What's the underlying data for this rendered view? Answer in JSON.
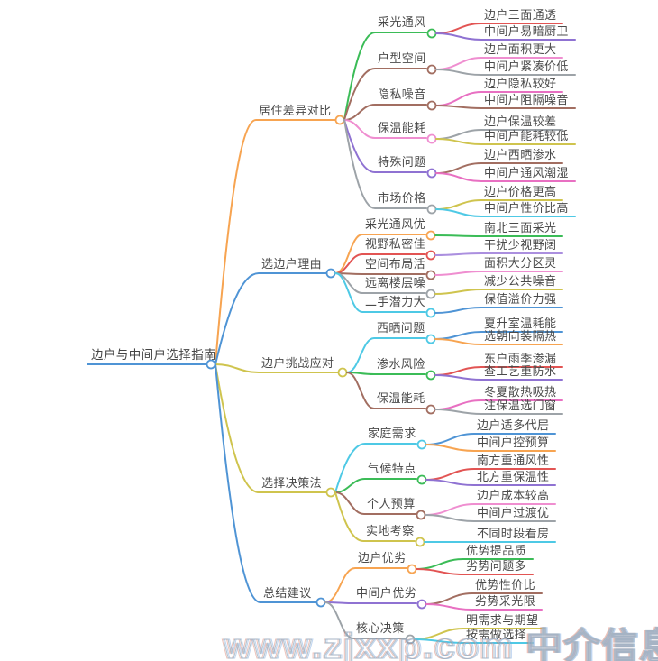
{
  "watermark": {
    "text": "www.zjxxp.com 中介信息铺网"
  },
  "palette": {
    "blue": "#4f94d5",
    "orange": "#f7a451",
    "olive": "#cfc44e",
    "cyan": "#4ec9e5",
    "green": "#3bbc57",
    "red": "#e25453",
    "brown": "#a26e61",
    "purple": "#8f72d2",
    "lavender": "#ab8fdf",
    "magenta": "#e870c2",
    "pink": "#ef8ed0",
    "gray": "#9da3a8"
  },
  "mindmap": {
    "root": {
      "label": "边户与中间户选择指南",
      "color": "blue"
    },
    "branches": [
      {
        "label": "居住差异对比",
        "color": "orange",
        "children": [
          {
            "label": "采光通风",
            "color": "green",
            "leaves": [
              {
                "label": "边户三面通透",
                "color": "red"
              },
              {
                "label": "中间户易暗厨卫",
                "color": "purple"
              }
            ]
          },
          {
            "label": "户型空间",
            "color": "brown",
            "leaves": [
              {
                "label": "边户面积更大",
                "color": "pink"
              },
              {
                "label": "中间户紧凑价低",
                "color": "gray"
              }
            ]
          },
          {
            "label": "隐私噪音",
            "color": "brown",
            "leaves": [
              {
                "label": "边户隐私较好",
                "color": "magenta"
              },
              {
                "label": "中间户阻隔噪音",
                "color": "brown"
              }
            ]
          },
          {
            "label": "保温能耗",
            "color": "pink",
            "leaves": [
              {
                "label": "边户保温较差",
                "color": "gray"
              },
              {
                "label": "中间户能耗较低",
                "color": "olive"
              }
            ]
          },
          {
            "label": "特殊问题",
            "color": "purple",
            "leaves": [
              {
                "label": "边户西晒渗水",
                "color": "brown"
              },
              {
                "label": "中间户通风潮湿",
                "color": "magenta"
              }
            ]
          },
          {
            "label": "市场价格",
            "color": "gray",
            "leaves": [
              {
                "label": "边户价格更高",
                "color": "olive"
              },
              {
                "label": "中间户性价比高",
                "color": "cyan"
              }
            ]
          }
        ]
      },
      {
        "label": "选边户理由",
        "color": "blue",
        "children": [
          {
            "label": "采光通风优",
            "color": "orange",
            "leaves": [
              {
                "label": "南北三面采光",
                "color": "green"
              }
            ]
          },
          {
            "label": "视野私密佳",
            "color": "red",
            "leaves": [
              {
                "label": "干扰少视野阔",
                "color": "lavender"
              }
            ]
          },
          {
            "label": "空间布局活",
            "color": "brown",
            "leaves": [
              {
                "label": "面积大分区灵",
                "color": "pink"
              }
            ]
          },
          {
            "label": "远离楼层噪",
            "color": "gray",
            "leaves": [
              {
                "label": "减少公共噪音",
                "color": "olive"
              }
            ]
          },
          {
            "label": "二手潜力大",
            "color": "cyan",
            "leaves": [
              {
                "label": "保值溢价力强",
                "color": "blue"
              }
            ]
          }
        ]
      },
      {
        "label": "边户挑战应对",
        "color": "olive",
        "children": [
          {
            "label": "西晒问题",
            "color": "cyan",
            "leaves": [
              {
                "label": "夏升室温耗能",
                "color": "blue"
              },
              {
                "label": "选朝向装隔热",
                "color": "orange"
              }
            ]
          },
          {
            "label": "渗水风险",
            "color": "green",
            "leaves": [
              {
                "label": "东户雨季渗漏",
                "color": "red"
              },
              {
                "label": "查工艺重防水",
                "color": "purple"
              }
            ]
          },
          {
            "label": "保温能耗",
            "color": "brown",
            "leaves": [
              {
                "label": "冬夏散热吸热",
                "color": "magenta"
              },
              {
                "label": "注保温选门窗",
                "color": "gray"
              }
            ]
          }
        ]
      },
      {
        "label": "选择决策法",
        "color": "olive",
        "children": [
          {
            "label": "家庭需求",
            "color": "cyan",
            "leaves": [
              {
                "label": "边户适多代居",
                "color": "blue"
              },
              {
                "label": "中间户控预算",
                "color": "orange"
              }
            ]
          },
          {
            "label": "气候特点",
            "color": "green",
            "leaves": [
              {
                "label": "南方重通风性",
                "color": "red"
              },
              {
                "label": "北方重保温性",
                "color": "purple"
              }
            ]
          },
          {
            "label": "个人预算",
            "color": "brown",
            "leaves": [
              {
                "label": "边户成本较高",
                "color": "pink"
              },
              {
                "label": "中间户过渡优",
                "color": "gray"
              }
            ]
          },
          {
            "label": "实地考察",
            "color": "olive",
            "leaves": [
              {
                "label": "不同时段看房",
                "color": "cyan"
              }
            ]
          }
        ]
      },
      {
        "label": "总结建议",
        "color": "blue",
        "children": [
          {
            "label": "边户优劣",
            "color": "orange",
            "leaves": [
              {
                "label": "优势提品质",
                "color": "green"
              },
              {
                "label": "劣势问题多",
                "color": "red"
              }
            ]
          },
          {
            "label": "中间户优劣",
            "color": "purple",
            "leaves": [
              {
                "label": "优势性价比",
                "color": "brown"
              },
              {
                "label": "劣势采光限",
                "color": "magenta"
              }
            ]
          },
          {
            "label": "核心决策",
            "color": "gray",
            "leaves": [
              {
                "label": "明需求与期望",
                "color": "olive"
              },
              {
                "label": "按需做选择",
                "color": "cyan"
              }
            ]
          }
        ]
      }
    ]
  }
}
